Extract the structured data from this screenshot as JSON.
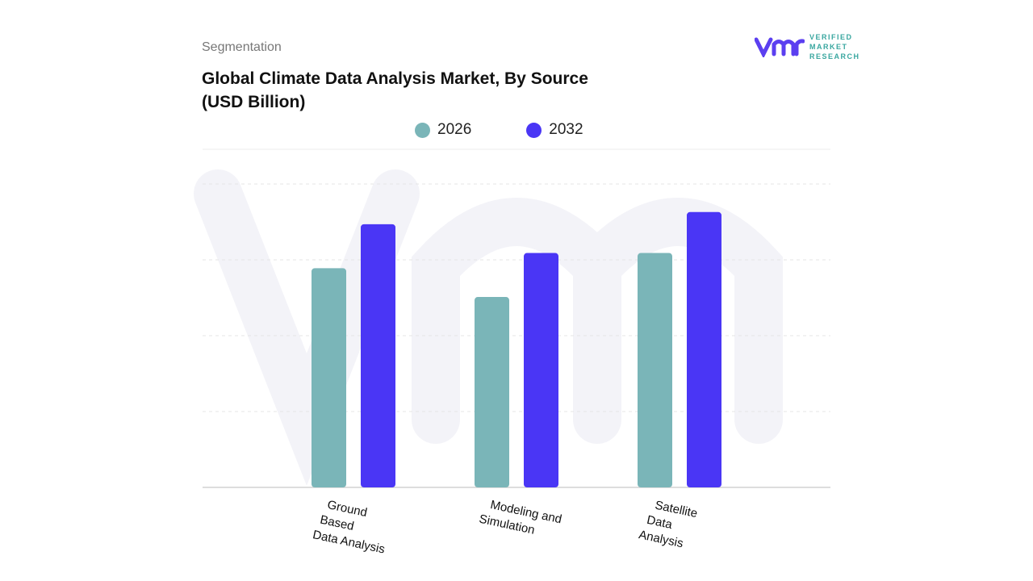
{
  "header": {
    "segment_label": "Segmentation",
    "title": "Global Climate Data Analysis Market, By Source (USD Billion)"
  },
  "logo": {
    "text_lines": [
      "VERIFIED",
      "MARKET",
      "RESEARCH"
    ]
  },
  "colors": {
    "2026": "#7ab5b8",
    "2032": "#4a36f5",
    "logo_purple": "#5b3ff0",
    "logo_teal": "#3aa7a0"
  },
  "chart_data": {
    "type": "bar",
    "title": "Global Climate Data Analysis Market, By Source (USD Billion)",
    "categories": [
      "Ground Based Data Analysis",
      "Modeling and Simulation",
      "Satellite Data Analysis"
    ],
    "category_lines": [
      [
        "Ground",
        "Based",
        "Data Analysis"
      ],
      [
        "Modeling and",
        "Simulation"
      ],
      [
        "Satellite",
        "Data",
        "Analysis"
      ]
    ],
    "series": [
      {
        "name": "2026",
        "values": [
          2.89,
          2.51,
          3.09
        ]
      },
      {
        "name": "2032",
        "values": [
          3.47,
          3.09,
          3.63
        ]
      }
    ],
    "ylim": [
      0,
      4
    ],
    "grid": true,
    "legend_position": "top",
    "xlabel": "",
    "ylabel": ""
  }
}
